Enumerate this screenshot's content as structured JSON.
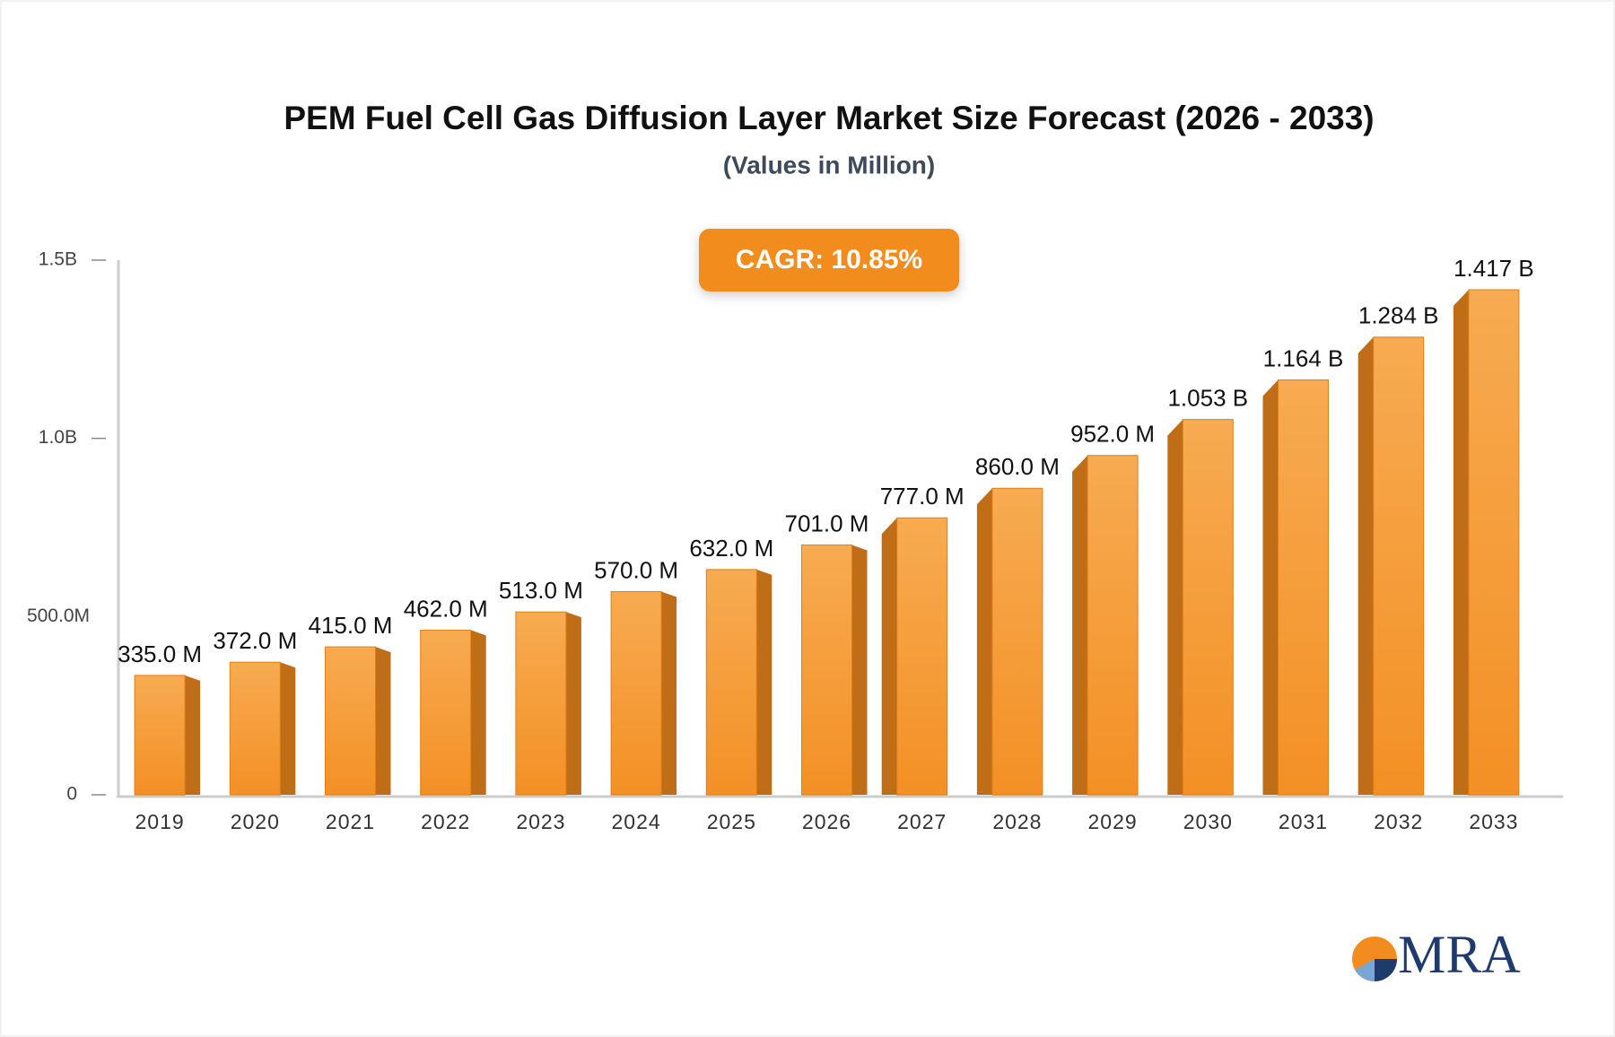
{
  "chart_data": {
    "type": "bar3d",
    "title": "PEM Fuel Cell Gas Diffusion Layer Market Size Forecast (2026 - 2033)",
    "subtitle": "(Values in Million)",
    "annotation": "CAGR: 10.85%",
    "categories": [
      "2019",
      "2020",
      "2021",
      "2022",
      "2023",
      "2024",
      "2025",
      "2026",
      "2027",
      "2028",
      "2029",
      "2030",
      "2031",
      "2032",
      "2033"
    ],
    "values": [
      335,
      372,
      415,
      462,
      513,
      570,
      632,
      701,
      777,
      860,
      952,
      1053,
      1164,
      1284,
      1417
    ],
    "value_labels": [
      "335.0 M",
      "372.0 M",
      "415.0 M",
      "462.0 M",
      "513.0 M",
      "570.0 M",
      "632.0 M",
      "701.0 M",
      "777.0 M",
      "860.0 M",
      "952.0 M",
      "1.053 B",
      "1.164 B",
      "1.284 B",
      "1.417 B"
    ],
    "color": "#f5a040",
    "ylim": [
      0,
      1500
    ],
    "yticks": [
      0,
      {
        "value": 500,
        "label": "500.0M"
      },
      {
        "value": 1000,
        "label": "1.0B"
      },
      {
        "value": 1500,
        "label": "1.5B"
      }
    ]
  },
  "logo": "MRA"
}
